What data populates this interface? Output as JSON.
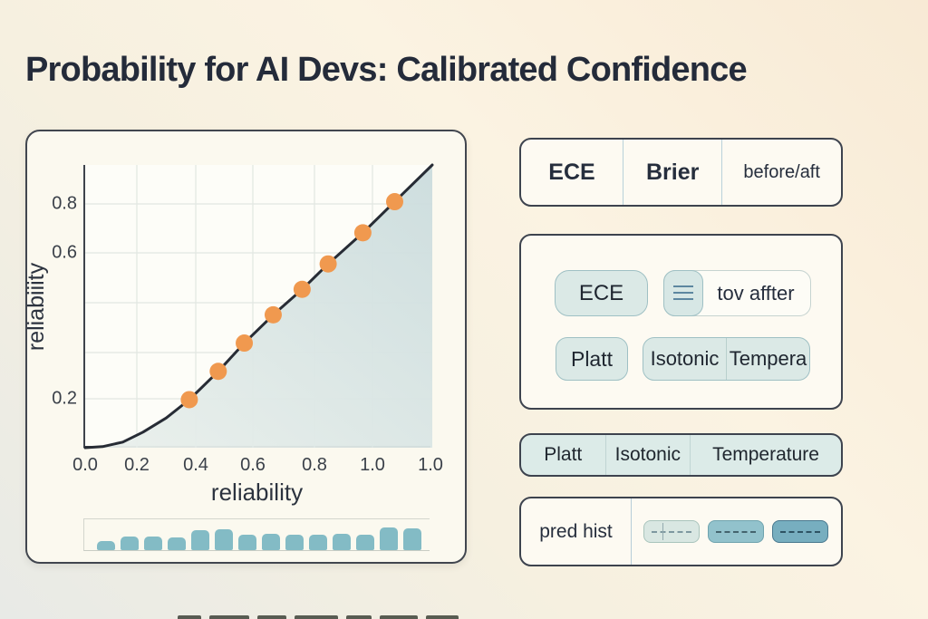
{
  "title": "Probability for AI Devs: Calibrated Confidence",
  "chart_data": {
    "type": "line",
    "title": "",
    "x_label": "reliability",
    "y_label": "reliabiiity",
    "x_ticks": [
      "0.0",
      "0.2",
      "0.4",
      "0.6",
      "0.8",
      "1.0",
      "1.0"
    ],
    "y_ticks": [
      "0.8",
      "0.6",
      "0.2"
    ],
    "xlim": [
      0,
      1.2
    ],
    "ylim": [
      0,
      1.0
    ],
    "grid": true,
    "legend": "none",
    "curve_points": [
      [
        0,
        0
      ],
      [
        0.06,
        0.004
      ],
      [
        0.13,
        0.02
      ],
      [
        0.2,
        0.055
      ],
      [
        0.28,
        0.105
      ],
      [
        0.36,
        0.17
      ],
      [
        0.46,
        0.27
      ],
      [
        0.55,
        0.37
      ],
      [
        0.65,
        0.47
      ],
      [
        0.75,
        0.56
      ],
      [
        0.84,
        0.65
      ],
      [
        0.96,
        0.76
      ],
      [
        1.07,
        0.87
      ],
      [
        1.2,
        1.0
      ]
    ],
    "calibration_points": [
      [
        0.36,
        0.17
      ],
      [
        0.46,
        0.27
      ],
      [
        0.55,
        0.37
      ],
      [
        0.65,
        0.47
      ],
      [
        0.75,
        0.56
      ],
      [
        0.84,
        0.65
      ],
      [
        0.96,
        0.76
      ],
      [
        1.07,
        0.87
      ]
    ],
    "point_color": "#f0994f",
    "line_color": "#272c35",
    "area_fill_top": "#cbdcdd",
    "area_fill_bottom": "#eaf0ec",
    "grid_color": "#e2e7e2",
    "histogram": {
      "values": [
        0.4,
        0.6,
        0.6,
        0.58,
        0.88,
        0.92,
        0.66,
        0.72,
        0.66,
        0.66,
        0.72,
        0.66,
        1.0,
        0.95
      ],
      "color": "#83bbc5"
    }
  },
  "metrics_bar": {
    "items": [
      {
        "label": "ECE"
      },
      {
        "label": "Brier"
      },
      {
        "label": "before/aft"
      }
    ]
  },
  "controls_panel": {
    "ece_chip": "ECE",
    "menu_icon": "hamburger-menu",
    "after_field": "tov affter",
    "platt_chip": "Platt",
    "isotonic_chip": "Isotonic",
    "temperature_chip": "Tempera"
  },
  "methods_bar": {
    "items": [
      {
        "label": "Platt"
      },
      {
        "label": "Isotonic"
      },
      {
        "label": "Temperature"
      }
    ]
  },
  "pred_hist_panel": {
    "label": "pred hist",
    "swatches": [
      {
        "name": "light",
        "fill": "#d9e7e2",
        "border": "#a9c4bc",
        "dash": "#7e98a0"
      },
      {
        "name": "medium",
        "fill": "#92c2cc",
        "border": "#6fa3ae",
        "dash": "#44646e"
      },
      {
        "name": "dark",
        "fill": "#77aebf",
        "border": "#49788f",
        "dash": "#2e5363"
      }
    ]
  },
  "colors": {
    "background_warm": "#f8ead5",
    "background_cool": "#e8eae6",
    "card_bg": "#fbf9ef",
    "card_border": "#41464f",
    "accent_teal": "#83bbc5",
    "accent_orange": "#f0994f",
    "chip_teal": "#dbe9e6",
    "text_dark": "#242b3a"
  }
}
